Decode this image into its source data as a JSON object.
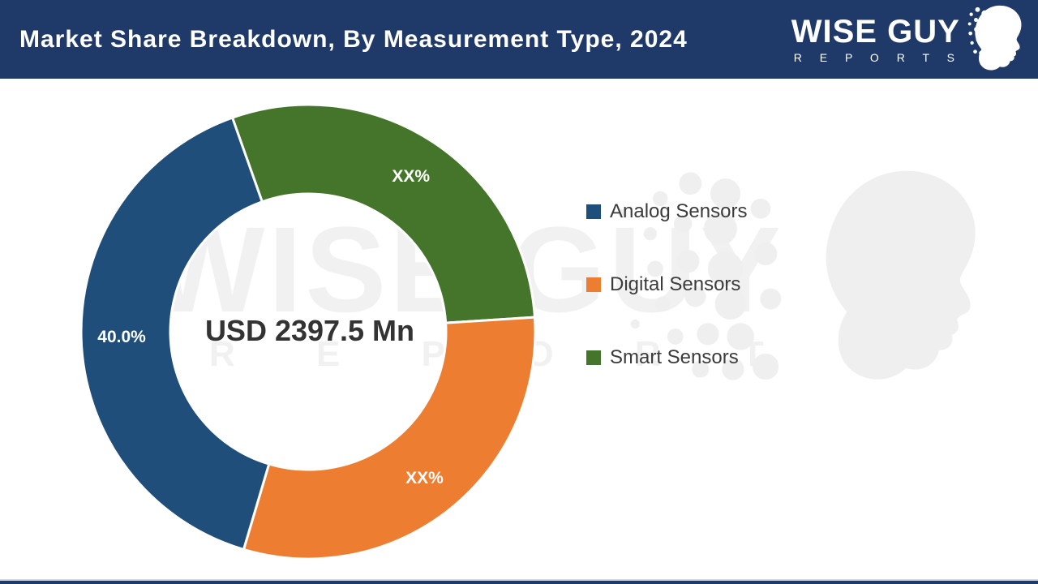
{
  "header": {
    "title": "Market Share Breakdown, By Measurement Type, 2024",
    "logo": {
      "line1": "WISE GUY",
      "line2": "R E P O R T S"
    }
  },
  "watermark": {
    "line1": "WISE GUY",
    "line2": "R E P O R T S"
  },
  "chart_data": {
    "type": "pie",
    "donut": true,
    "title": "Market Share Breakdown, By Measurement Type, 2024",
    "center_label": "USD 2397.5 Mn",
    "start_angle_deg": -19.5,
    "legend_position": "right",
    "slices": [
      {
        "name": "Smart Sensors",
        "value_pct": 29.4,
        "display_label": "XX%",
        "color": "#44752B"
      },
      {
        "name": "Digital Sensors",
        "value_pct": 30.6,
        "display_label": "XX%",
        "color": "#ED7D31"
      },
      {
        "name": "Analog Sensors",
        "value_pct": 40.0,
        "display_label": "40.0%",
        "color": "#1F4E7B"
      }
    ],
    "legend": [
      {
        "label": "Analog Sensors",
        "color": "#1F4E7B"
      },
      {
        "label": "Digital Sensors",
        "color": "#ED7D31"
      },
      {
        "label": "Smart Sensors",
        "color": "#44752B"
      }
    ]
  },
  "colors": {
    "header_bg": "#1F3A68",
    "footer_bar": "#1F3A68",
    "footer_hairline": "#d6d6d6",
    "center_text": "#333333",
    "legend_text": "#3b3b3b",
    "watermark": "#f1f1f1"
  }
}
